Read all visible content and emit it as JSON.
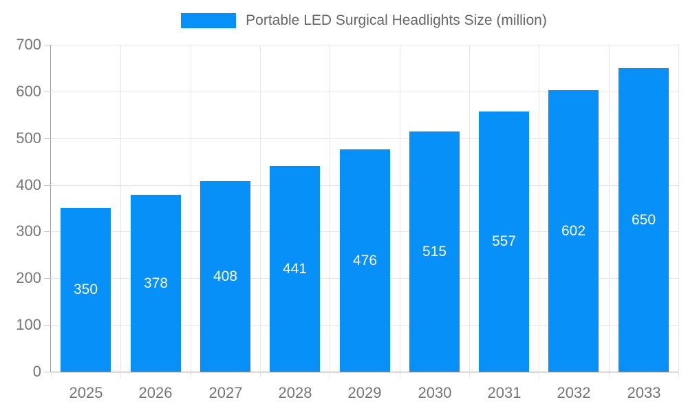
{
  "chart_data": {
    "type": "bar",
    "title": "Portable LED Surgical Headlights Size (million)",
    "categories": [
      "2025",
      "2026",
      "2027",
      "2028",
      "2029",
      "2030",
      "2031",
      "2032",
      "2033"
    ],
    "values": [
      350,
      378,
      408,
      441,
      476,
      515,
      557,
      602,
      650
    ],
    "series": [
      {
        "name": "Portable LED Surgical Headlights Size (million)",
        "values": [
          350,
          378,
          408,
          441,
          476,
          515,
          557,
          602,
          650
        ]
      }
    ],
    "xlabel": "",
    "ylabel": "",
    "ylim": [
      0,
      700
    ],
    "ytick_step": 100,
    "ytick_labels": [
      "0",
      "100",
      "200",
      "300",
      "400",
      "500",
      "600",
      "700"
    ],
    "grid": "horizontal and vertical gridlines on",
    "legend_position": "top-center",
    "value_labels": "centered inside bars, white",
    "colors": {
      "bar": "#0690f8",
      "grid": "#e6e6e6",
      "axis": "#9e9e9e",
      "tick_text": "#757575",
      "legend_text": "#666666",
      "value_label": "#ffffff",
      "background": "#ffffff"
    }
  }
}
